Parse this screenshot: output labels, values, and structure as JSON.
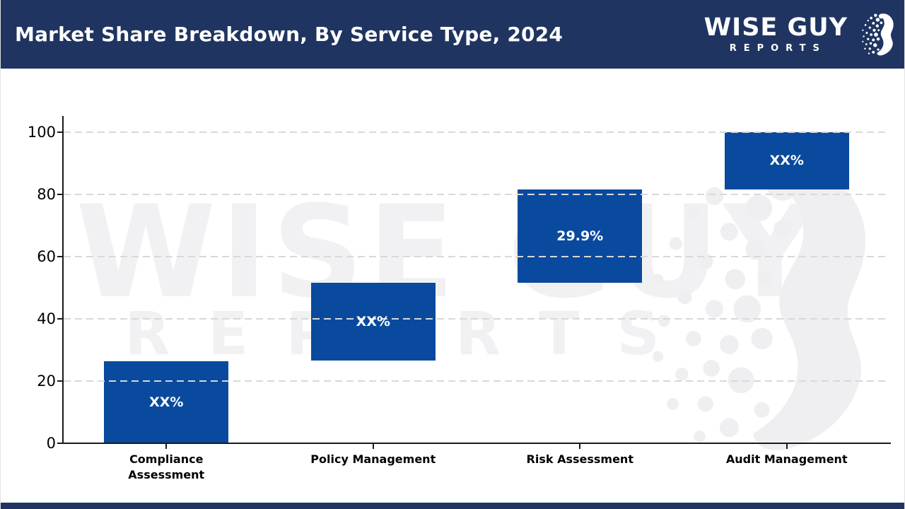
{
  "header": {
    "title": "Market Share Breakdown, By Service Type, 2024",
    "logo": {
      "name": "WISE GUY",
      "sub": "REPORTS"
    }
  },
  "watermark": {
    "line1": "WISE GUY",
    "line2": "R E P O R T S"
  },
  "chart_data": {
    "type": "bar",
    "variant": "floating-waterfall",
    "title": "Market Share Breakdown, By Service Type, 2024",
    "categories": [
      "Compliance Assessment",
      "Policy Management",
      "Risk Assessment",
      "Audit Management"
    ],
    "category_label_lines": [
      [
        "Compliance",
        "Assessment"
      ],
      [
        "Policy Management"
      ],
      [
        "Risk Assessment"
      ],
      [
        "Audit Management"
      ]
    ],
    "segments": [
      {
        "category": "Compliance Assessment",
        "start": 0,
        "end": 26.4,
        "label": "XX%"
      },
      {
        "category": "Policy Management",
        "start": 26.5,
        "end": 51.5,
        "label": "XX%"
      },
      {
        "category": "Risk Assessment",
        "start": 51.6,
        "end": 81.5,
        "label": "29.9%"
      },
      {
        "category": "Audit Management",
        "start": 81.6,
        "end": 100,
        "label": "XX%"
      }
    ],
    "xlabel": "",
    "ylabel": "",
    "ylim": [
      0,
      100
    ],
    "yticks": [
      0,
      20,
      40,
      60,
      80,
      100
    ],
    "grid": {
      "horizontal": true,
      "style": "dashed"
    },
    "legend": null,
    "bar_color": "#0a4a9e",
    "bar_label_color": "#ffffff"
  },
  "colors": {
    "header_bg": "#1f3461",
    "footer_bg": "#1f3461",
    "bar": "#0a4a9e",
    "grid": "#d8d8d8",
    "axis": "#1a1a1a",
    "watermark": "#f1f1f3",
    "background": "#ffffff"
  }
}
